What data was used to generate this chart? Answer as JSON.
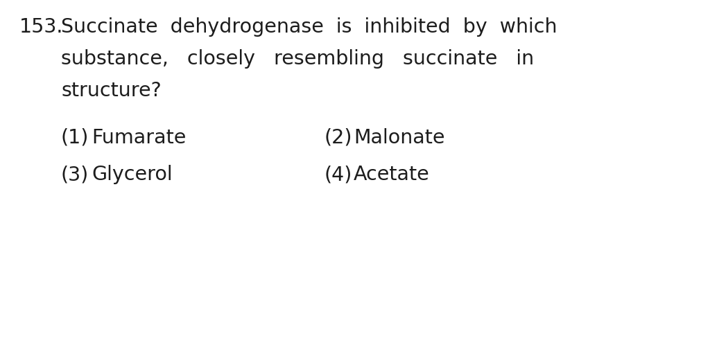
{
  "background_color": "#ffffff",
  "question_number": "153.",
  "question_text_line1": "Succinate  dehydrogenase  is  inhibited  by  which",
  "question_text_line2": "substance,   closely   resembling   succinate   in",
  "question_text_line3": "structure?",
  "options": [
    {
      "label": "(1)",
      "text": "Fumarate"
    },
    {
      "label": "(2)",
      "text": "Malonate"
    },
    {
      "label": "(3)",
      "text": "Glycerol"
    },
    {
      "label": "(4)",
      "text": "Acetate"
    }
  ],
  "text_color": "#1c1c1c",
  "font_size": 20.5,
  "fig_width": 10.24,
  "fig_height": 4.89,
  "dpi": 100
}
